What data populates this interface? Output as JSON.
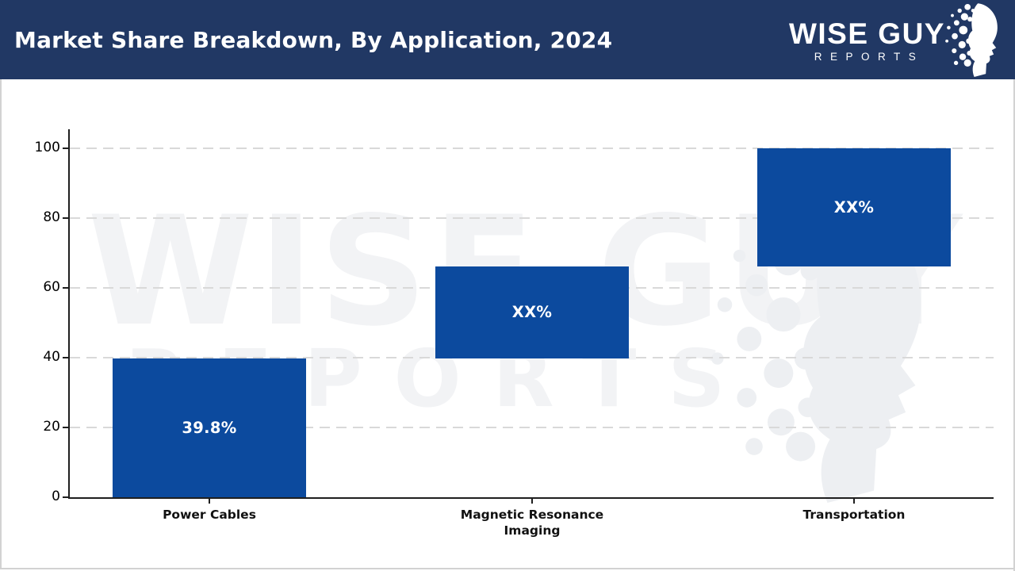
{
  "header": {
    "title": "Market Share Breakdown, By Application, 2024",
    "background_color": "#213864",
    "logo": {
      "name_line": "WISE GUY",
      "sub_line": "REPORTS"
    }
  },
  "watermark": {
    "line1": "WISE GUY",
    "line2": "REPORTS",
    "text_color": "#f2f3f5",
    "head_color": "#edeff2"
  },
  "chart_data": {
    "type": "bar",
    "variant": "floating-segment-waterfall",
    "title": "Market Share Breakdown, By Application, 2024",
    "categories": [
      "Power Cables",
      "Magnetic Resonance Imaging",
      "Transportation"
    ],
    "series": [
      {
        "name": "Market share (%)",
        "segments": [
          {
            "category": "Power Cables",
            "from": 0,
            "to": 39.8,
            "label": "39.8%"
          },
          {
            "category": "Magnetic Resonance Imaging",
            "from": 39.8,
            "to": 66.2,
            "label": "XX%"
          },
          {
            "category": "Transportation",
            "from": 66.2,
            "to": 100,
            "label": "XX%"
          }
        ]
      }
    ],
    "xlabel": "",
    "ylabel": "",
    "ylim": [
      0,
      100
    ],
    "yticks": [
      0,
      20,
      40,
      60,
      80,
      100
    ],
    "grid": "horizontal-dashed",
    "legend": "none",
    "bar_color": "#0c4a9e",
    "bar_label_color": "#ffffff",
    "gridline_color": "#d9d9d9",
    "axis_color": "#1f1f1f",
    "tick_label_color": "#000000"
  },
  "frame": {
    "divider_color": "#d2d2d2"
  }
}
